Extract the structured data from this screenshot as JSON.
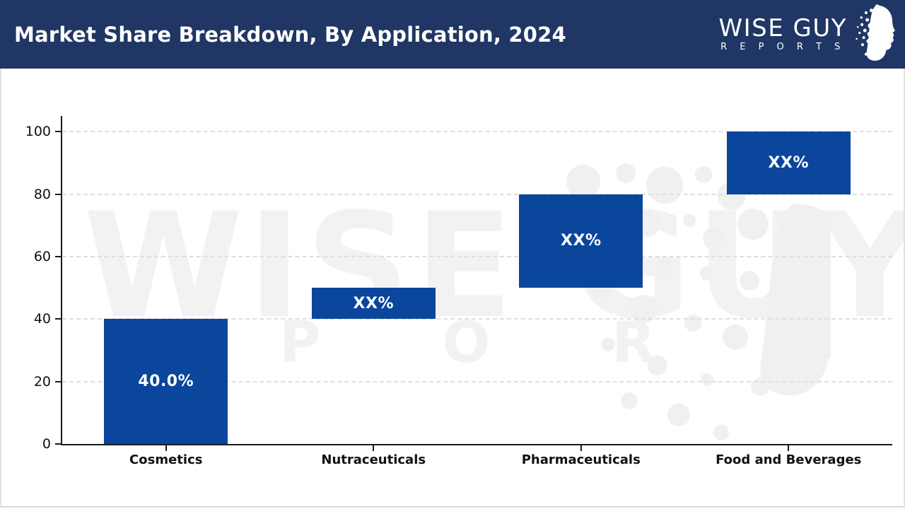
{
  "header": {
    "title": "Market Share Breakdown, By Application, 2024",
    "logo": {
      "line1": "WISE GUY",
      "line2": "R E P O R T S"
    }
  },
  "watermark": {
    "line1": "WISE GUY",
    "line2": "P O R T S"
  },
  "chart_data": {
    "type": "bar",
    "subtype": "waterfall",
    "title": "Market Share Breakdown, By Application, 2024",
    "categories": [
      "Cosmetics",
      "Nutraceuticals",
      "Pharmaceuticals",
      "Food and Beverages"
    ],
    "segments": [
      {
        "category": "Cosmetics",
        "start": 0,
        "end": 40,
        "label": "40.0%"
      },
      {
        "category": "Nutraceuticals",
        "start": 40,
        "end": 50,
        "label": "XX%"
      },
      {
        "category": "Pharmaceuticals",
        "start": 50,
        "end": 80,
        "label": "XX%"
      },
      {
        "category": "Food and Beverages",
        "start": 80,
        "end": 100,
        "label": "XX%"
      }
    ],
    "increments_pct": [
      40,
      10,
      30,
      20
    ],
    "cumulative_pct": [
      40,
      50,
      80,
      100
    ],
    "y_ticks": [
      0,
      20,
      40,
      60,
      80,
      100
    ],
    "ylim": [
      0,
      105
    ],
    "xlabel": "",
    "ylabel": "",
    "legend": "none",
    "grid": "horizontal-dashed",
    "colors": {
      "bar": "#0b469d",
      "header_bg": "#203664",
      "grid_line": "#dedede",
      "axis": "#1a1a1a",
      "bar_label_text": "#ffffff",
      "watermark": "#f2f2f2"
    }
  }
}
